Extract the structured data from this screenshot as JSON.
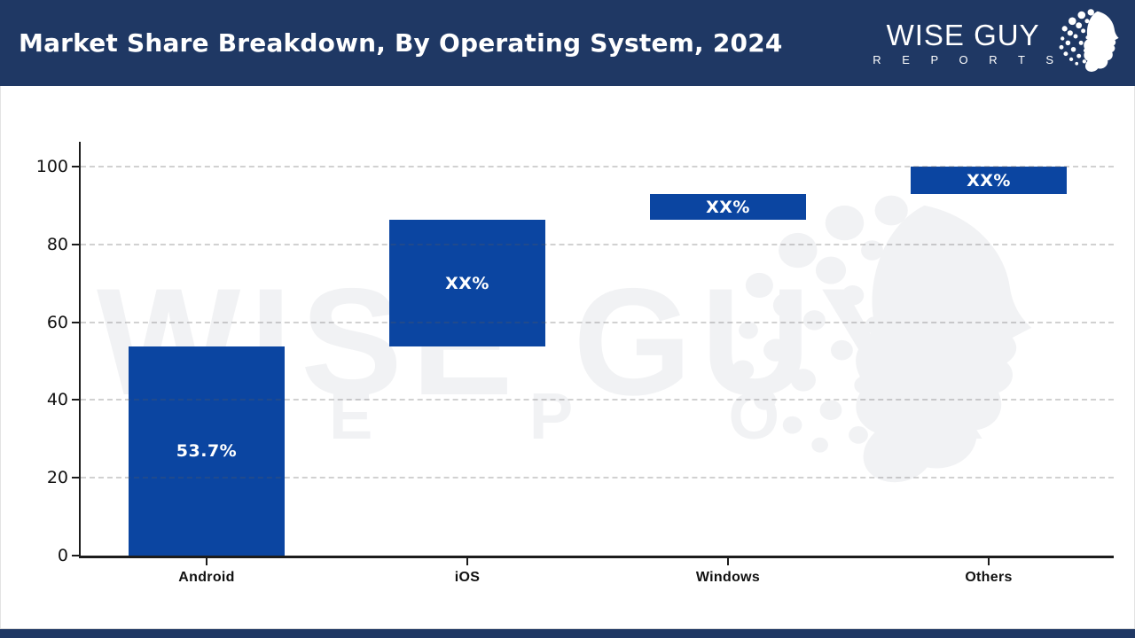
{
  "header": {
    "title": "Market Share Breakdown, By Operating System, 2024",
    "logo": {
      "line1": "WISE GUY",
      "line2": "R E P O R T S"
    }
  },
  "watermark": {
    "line1": "WISE GUY",
    "line2": "R E P O R T S"
  },
  "chart_data": {
    "type": "bar",
    "subtype": "waterfall",
    "title": "Market Share Breakdown, By Operating System, 2024",
    "categories": [
      "Android",
      "iOS",
      "Windows",
      "Others"
    ],
    "segments": [
      {
        "category": "Android",
        "start": 0,
        "end": 53.7,
        "label": "53.7%"
      },
      {
        "category": "iOS",
        "start": 53.7,
        "end": 86.3,
        "label": "XX%"
      },
      {
        "category": "Windows",
        "start": 86.3,
        "end": 92.9,
        "label": "XX%"
      },
      {
        "category": "Others",
        "start": 92.9,
        "end": 100,
        "label": "XX%"
      }
    ],
    "yticks": [
      0,
      20,
      40,
      60,
      80,
      100
    ],
    "ylim": [
      0,
      106.4
    ],
    "xlabel": "",
    "ylabel": "",
    "grid": "horizontal-dashed",
    "legend": "none",
    "bar_color": "#0B45A1",
    "bar_label_color": "#ffffff"
  },
  "colors": {
    "header_bg": "#1F3864",
    "footer_bg": "#1F3864",
    "bar": "#0B45A1",
    "watermark": "#f1f2f4",
    "axis": "#1c1c1c",
    "gridline": "#d6d6d6"
  }
}
